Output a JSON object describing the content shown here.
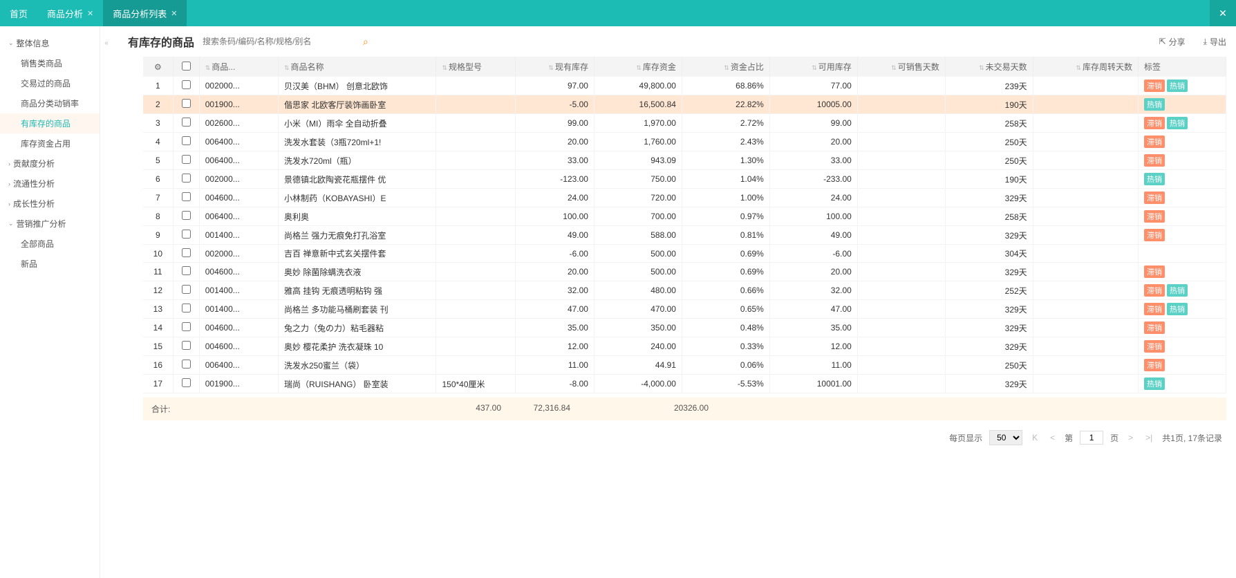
{
  "topbar": {
    "tabs": [
      {
        "label": "首页",
        "closable": false,
        "active": false
      },
      {
        "label": "商品分析",
        "closable": true,
        "active": false
      },
      {
        "label": "商品分析列表",
        "closable": true,
        "active": true
      }
    ]
  },
  "sidebar": {
    "groups": [
      {
        "label": "整体信息",
        "expanded": true,
        "items": [
          {
            "label": "销售类商品"
          },
          {
            "label": "交易过的商品"
          },
          {
            "label": "商品分类动销率"
          },
          {
            "label": "有库存的商品",
            "active": true
          },
          {
            "label": "库存资金占用"
          }
        ]
      },
      {
        "label": "贡献度分析",
        "expanded": false,
        "items": []
      },
      {
        "label": "流通性分析",
        "expanded": false,
        "items": []
      },
      {
        "label": "成长性分析",
        "expanded": false,
        "items": []
      },
      {
        "label": "营销推广分析",
        "expanded": true,
        "items": [
          {
            "label": "全部商品"
          },
          {
            "label": "新品"
          }
        ]
      }
    ]
  },
  "page": {
    "title": "有库存的商品",
    "search_placeholder": "搜索条码/编码/名称/规格/别名",
    "actions": {
      "share": "分享",
      "export": "导出"
    }
  },
  "table": {
    "columns": {
      "idx": "",
      "chk": "",
      "code": "商品...",
      "name": "商品名称",
      "spec": "规格型号",
      "stock": "现有库存",
      "funds": "库存资金",
      "pct": "资金占比",
      "avail": "可用库存",
      "selldays": "可销售天数",
      "notradedays": "未交易天数",
      "cycledays": "库存周转天数",
      "tags": "标签"
    },
    "rows": [
      {
        "idx": 1,
        "code": "002000...",
        "name": "贝汉美（BHM） 创意北欧饰",
        "spec": "",
        "stock": "97.00",
        "funds": "49,800.00",
        "pct": "68.86%",
        "avail": "77.00",
        "selldays": "",
        "notradedays": "239天",
        "cycledays": "",
        "tags": [
          "滞销",
          "热销"
        ]
      },
      {
        "idx": 2,
        "code": "001900...",
        "name": "偕思家 北欧客厅装饰画卧室",
        "spec": "",
        "stock": "-5.00",
        "funds": "16,500.84",
        "pct": "22.82%",
        "avail": "10005.00",
        "selldays": "",
        "notradedays": "190天",
        "cycledays": "",
        "tags": [
          "热销"
        ],
        "highlight": true
      },
      {
        "idx": 3,
        "code": "002600...",
        "name": "小米（MI）雨伞 全自动折叠",
        "spec": "",
        "stock": "99.00",
        "funds": "1,970.00",
        "pct": "2.72%",
        "avail": "99.00",
        "selldays": "",
        "notradedays": "258天",
        "cycledays": "",
        "tags": [
          "滞销",
          "热销"
        ]
      },
      {
        "idx": 4,
        "code": "006400...",
        "name": "洗发水套装（3瓶720ml+1!",
        "spec": "",
        "stock": "20.00",
        "funds": "1,760.00",
        "pct": "2.43%",
        "avail": "20.00",
        "selldays": "",
        "notradedays": "250天",
        "cycledays": "",
        "tags": [
          "滞销"
        ]
      },
      {
        "idx": 5,
        "code": "006400...",
        "name": "洗发水720ml（瓶）",
        "spec": "",
        "stock": "33.00",
        "funds": "943.09",
        "pct": "1.30%",
        "avail": "33.00",
        "selldays": "",
        "notradedays": "250天",
        "cycledays": "",
        "tags": [
          "滞销"
        ]
      },
      {
        "idx": 6,
        "code": "002000...",
        "name": "景德镇北欧陶瓷花瓶摆件 优",
        "spec": "",
        "stock": "-123.00",
        "funds": "750.00",
        "pct": "1.04%",
        "avail": "-233.00",
        "selldays": "",
        "notradedays": "190天",
        "cycledays": "",
        "tags": [
          "热销"
        ]
      },
      {
        "idx": 7,
        "code": "004600...",
        "name": "小林制药（KOBAYASHI）E",
        "spec": "",
        "stock": "24.00",
        "funds": "720.00",
        "pct": "1.00%",
        "avail": "24.00",
        "selldays": "",
        "notradedays": "329天",
        "cycledays": "",
        "tags": [
          "滞销"
        ]
      },
      {
        "idx": 8,
        "code": "006400...",
        "name": "奥利奥",
        "spec": "",
        "stock": "100.00",
        "funds": "700.00",
        "pct": "0.97%",
        "avail": "100.00",
        "selldays": "",
        "notradedays": "258天",
        "cycledays": "",
        "tags": [
          "滞销"
        ]
      },
      {
        "idx": 9,
        "code": "001400...",
        "name": "尚格兰 强力无痕免打孔浴室",
        "spec": "",
        "stock": "49.00",
        "funds": "588.00",
        "pct": "0.81%",
        "avail": "49.00",
        "selldays": "",
        "notradedays": "329天",
        "cycledays": "",
        "tags": [
          "滞销"
        ]
      },
      {
        "idx": 10,
        "code": "002000...",
        "name": "吉百 禅意新中式玄关摆件套",
        "spec": "",
        "stock": "-6.00",
        "funds": "500.00",
        "pct": "0.69%",
        "avail": "-6.00",
        "selldays": "",
        "notradedays": "304天",
        "cycledays": "",
        "tags": []
      },
      {
        "idx": 11,
        "code": "004600...",
        "name": "奥妙 除菌除螨洗衣液",
        "spec": "",
        "stock": "20.00",
        "funds": "500.00",
        "pct": "0.69%",
        "avail": "20.00",
        "selldays": "",
        "notradedays": "329天",
        "cycledays": "",
        "tags": [
          "滞销"
        ]
      },
      {
        "idx": 12,
        "code": "001400...",
        "name": "雅高 挂钩 无痕透明粘钩 强",
        "spec": "",
        "stock": "32.00",
        "funds": "480.00",
        "pct": "0.66%",
        "avail": "32.00",
        "selldays": "",
        "notradedays": "252天",
        "cycledays": "",
        "tags": [
          "滞销",
          "热销"
        ]
      },
      {
        "idx": 13,
        "code": "001400...",
        "name": "尚格兰 多功能马桶刷套装 刊",
        "spec": "",
        "stock": "47.00",
        "funds": "470.00",
        "pct": "0.65%",
        "avail": "47.00",
        "selldays": "",
        "notradedays": "329天",
        "cycledays": "",
        "tags": [
          "滞销",
          "热销"
        ]
      },
      {
        "idx": 14,
        "code": "004600...",
        "name": "兔之力（兔の力）粘毛器粘",
        "spec": "",
        "stock": "35.00",
        "funds": "350.00",
        "pct": "0.48%",
        "avail": "35.00",
        "selldays": "",
        "notradedays": "329天",
        "cycledays": "",
        "tags": [
          "滞销"
        ]
      },
      {
        "idx": 15,
        "code": "004600...",
        "name": "奥妙 樱花柔护 洗衣凝珠 10",
        "spec": "",
        "stock": "12.00",
        "funds": "240.00",
        "pct": "0.33%",
        "avail": "12.00",
        "selldays": "",
        "notradedays": "329天",
        "cycledays": "",
        "tags": [
          "滞销"
        ]
      },
      {
        "idx": 16,
        "code": "006400...",
        "name": "洗发水250蜜兰（袋）",
        "spec": "",
        "stock": "11.00",
        "funds": "44.91",
        "pct": "0.06%",
        "avail": "11.00",
        "selldays": "",
        "notradedays": "250天",
        "cycledays": "",
        "tags": [
          "滞销"
        ]
      },
      {
        "idx": 17,
        "code": "001900...",
        "name": "瑞尚（RUISHANG） 卧室装",
        "spec": "150*40厘米",
        "stock": "-8.00",
        "funds": "-4,000.00",
        "pct": "-5.53%",
        "avail": "10001.00",
        "selldays": "",
        "notradedays": "329天",
        "cycledays": "",
        "tags": [
          "热销"
        ]
      }
    ],
    "total": {
      "label": "合计:",
      "stock": "437.00",
      "funds": "72,316.84",
      "avail": "20326.00"
    },
    "tag_styles": {
      "滞销": "tag-hot",
      "热销": "tag-popular"
    }
  },
  "pagination": {
    "perpage_label": "每页显示",
    "perpage_value": "50",
    "page_prefix": "第",
    "page_value": "1",
    "page_suffix": "页",
    "summary": "共1页, 17条记录"
  }
}
